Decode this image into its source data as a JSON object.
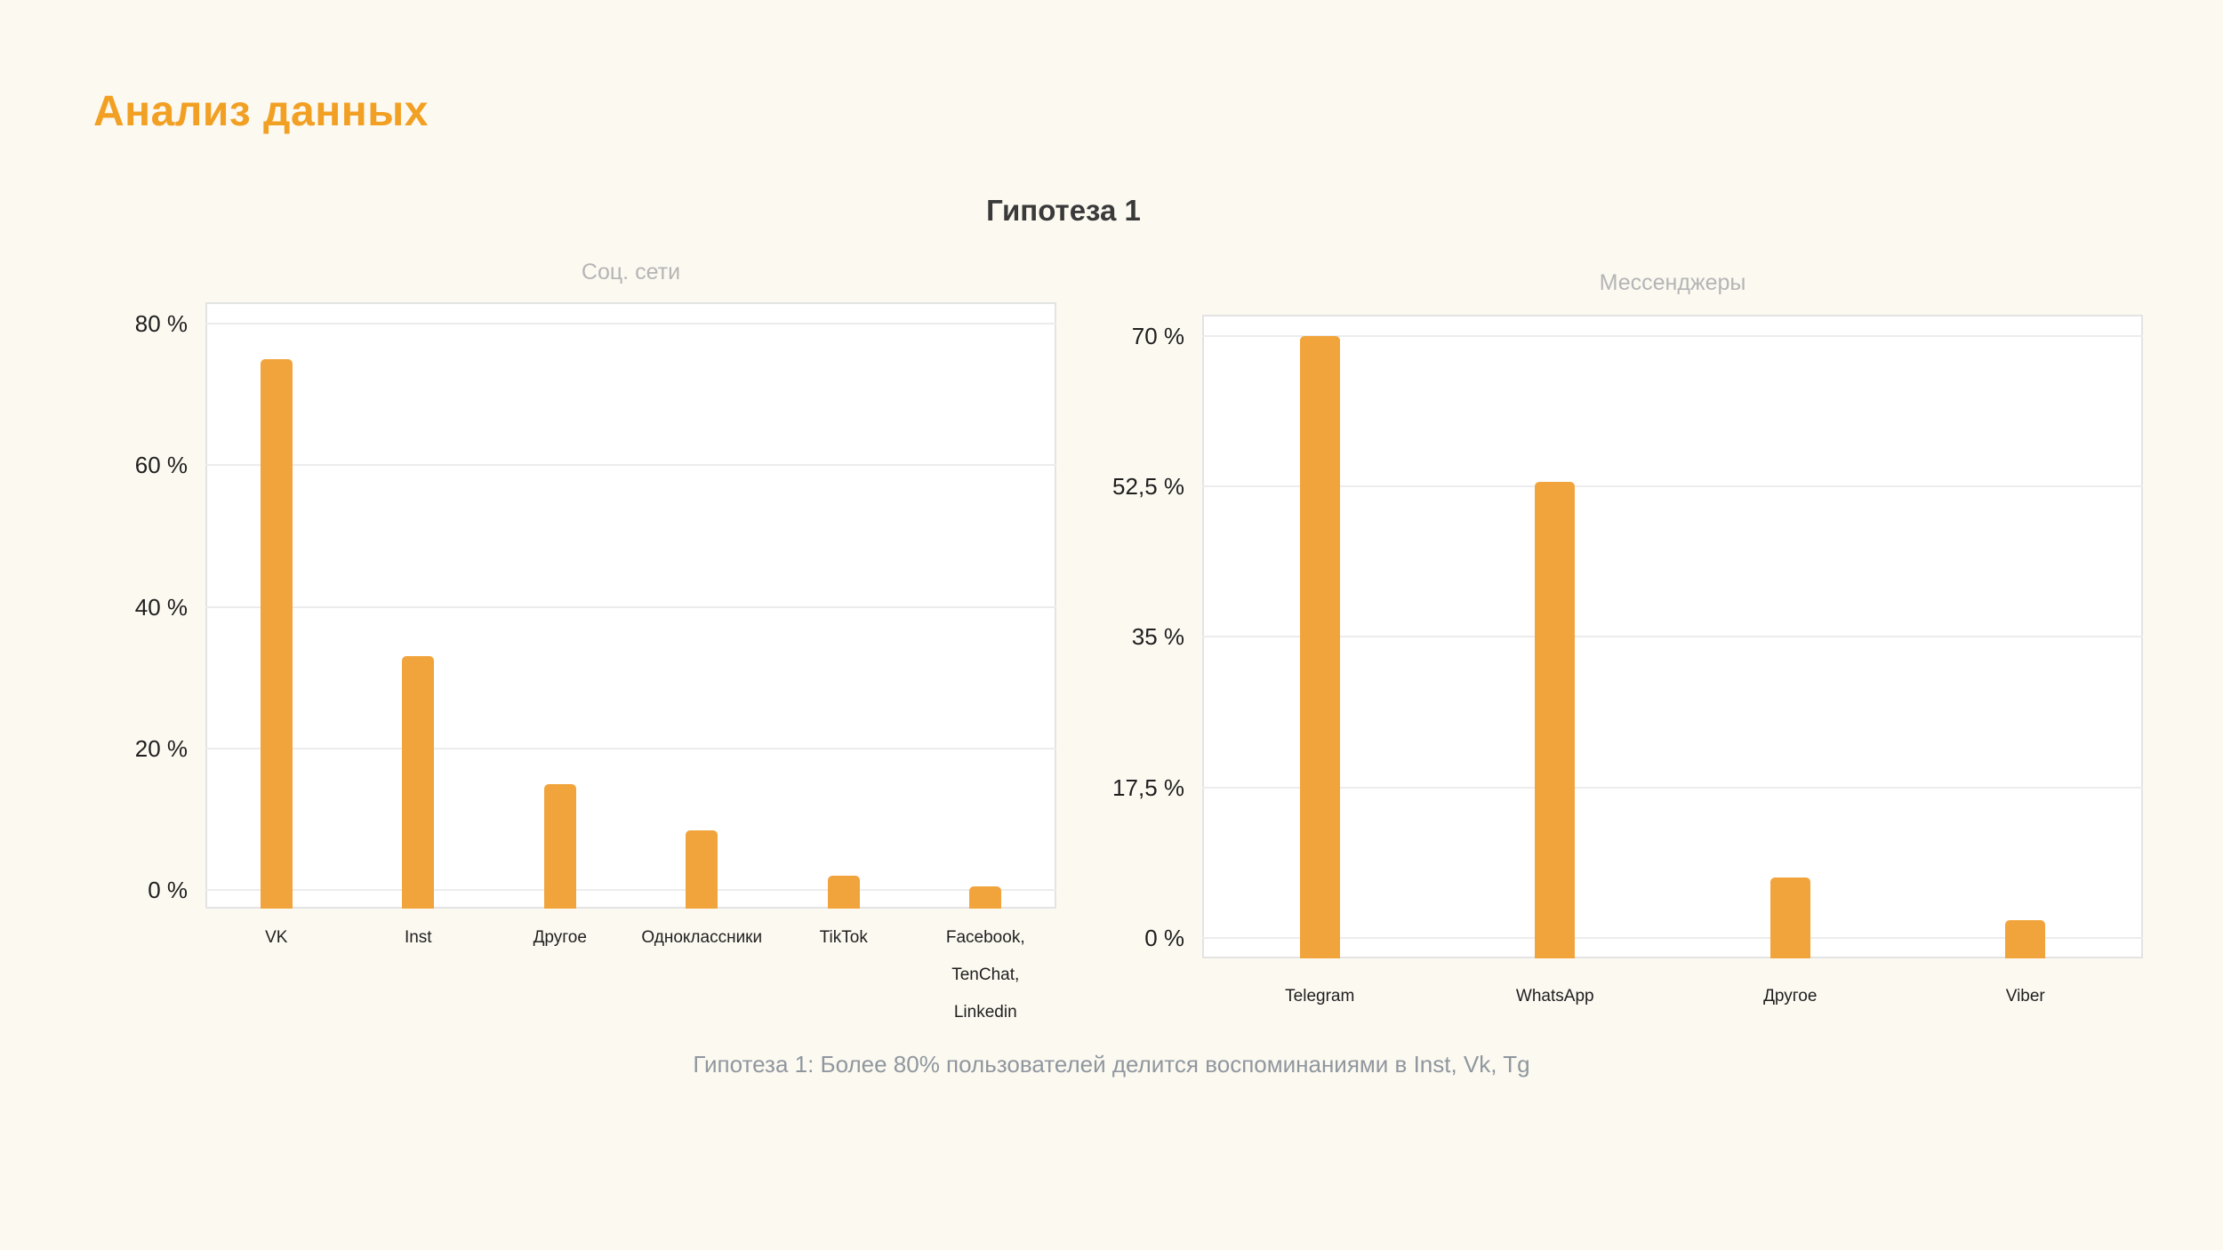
{
  "page": {
    "title": "Анализ данных",
    "subtitle": "Гипотеза 1",
    "caption": "Гипотеза 1: Более 80% пользователей делится воспоминаниями в Inst, Vk, Tg"
  },
  "colors": {
    "accent": "#F2A024",
    "bar": "#F2A43C",
    "background": "#FCF9F1",
    "plot_background": "#FFFFFF",
    "gridline": "#ECECEC",
    "chart_title": "#B5B5B5",
    "caption_text": "#8F979E"
  },
  "chart_data": [
    {
      "type": "bar",
      "title": "Соц. сети",
      "categories": [
        "VK",
        "Inst",
        "Другое",
        "Одноклассники",
        "TikTok",
        "Facebook,\nTenChat,\nLinkedin"
      ],
      "values": [
        75,
        33,
        15,
        8.5,
        2,
        0.5
      ],
      "yticks": [
        80,
        60,
        40,
        20,
        0
      ],
      "ytick_labels": [
        "80 %",
        "60 %",
        "40 %",
        "20 %",
        "0 %"
      ],
      "ylim": [
        -2.6,
        83
      ],
      "grid": true,
      "legend": "none",
      "xlabel": "",
      "ylabel": ""
    },
    {
      "type": "bar",
      "title": "Мессенджеры",
      "categories": [
        "Telegram",
        "WhatsApp",
        "Другое",
        "Viber"
      ],
      "values": [
        70,
        53,
        7,
        2
      ],
      "yticks": [
        70,
        52.5,
        35,
        17.5,
        0
      ],
      "ytick_labels": [
        "70 %",
        "52,5 %",
        "35 %",
        "17,5 %",
        "0 %"
      ],
      "ylim": [
        -2.4,
        72.5
      ],
      "grid": true,
      "legend": "none",
      "xlabel": "",
      "ylabel": ""
    }
  ]
}
